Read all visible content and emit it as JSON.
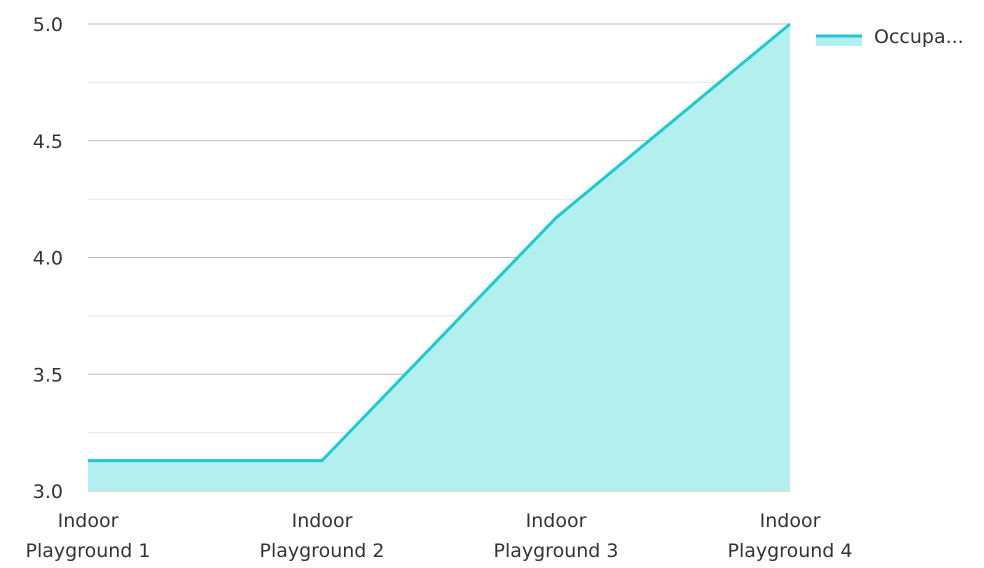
{
  "chart_data": {
    "type": "area",
    "categories": [
      "Indoor Playground 1",
      "Indoor Playground 2",
      "Indoor Playground 3",
      "Indoor Playground 4"
    ],
    "category_lines": [
      [
        "Indoor",
        "Playground 1"
      ],
      [
        "Indoor",
        "Playground 2"
      ],
      [
        "Indoor",
        "Playground 3"
      ],
      [
        "Indoor",
        "Playground 4"
      ]
    ],
    "series": [
      {
        "name": "Occupa...",
        "values": [
          3.13,
          3.13,
          4.17,
          5.0
        ],
        "line_color": "#1ccbd0",
        "fill_color": "#b2efee"
      }
    ],
    "ylim": [
      3.0,
      5.0
    ],
    "yticks": [
      3.0,
      3.5,
      4.0,
      4.5,
      5.0
    ],
    "ytick_labels": [
      "3.0",
      "3.5",
      "4.0",
      "4.5",
      "5.0"
    ],
    "grid": true,
    "legend_position": "top-right",
    "colors": {
      "grid_major": "#bdbdbd",
      "grid_minor": "#e4e4e4",
      "text": "#333333"
    }
  }
}
